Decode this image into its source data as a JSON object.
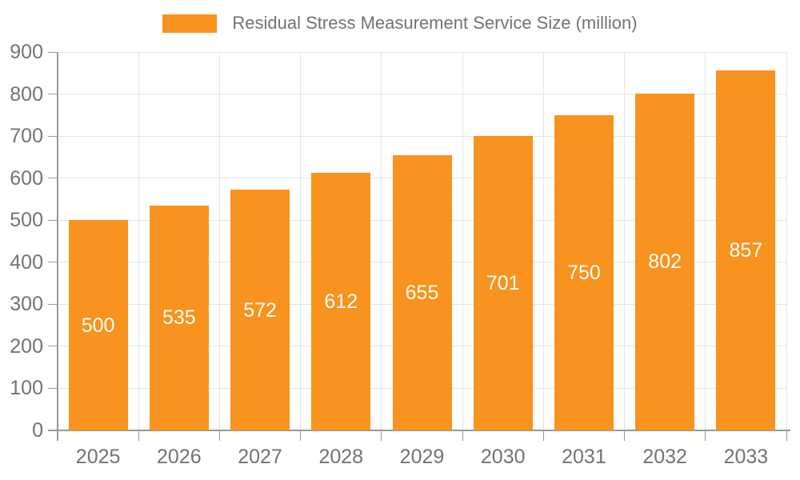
{
  "chart_data": {
    "type": "bar",
    "title": "Residual Stress Measurement Service Size (million)",
    "legend_position": "top",
    "categories": [
      "2025",
      "2026",
      "2027",
      "2028",
      "2029",
      "2030",
      "2031",
      "2032",
      "2033"
    ],
    "values": [
      500,
      535,
      572,
      612,
      655,
      701,
      750,
      802,
      857
    ],
    "value_labels": [
      "500",
      "535",
      "572",
      "612",
      "655",
      "701",
      "750",
      "802",
      "857"
    ],
    "xlabel": "",
    "ylabel": "",
    "ylim": [
      0,
      900
    ],
    "ytick_interval": 100,
    "ytick_labels": [
      "0",
      "100",
      "200",
      "300",
      "400",
      "500",
      "600",
      "700",
      "800",
      "900"
    ],
    "grid": true,
    "colors": {
      "bar": "#F7931E",
      "axis": "#999999",
      "tick_label": "#737373",
      "grid": "#E4E4E4",
      "value_label": "#FFFFFF",
      "background": "#FFFFFF"
    }
  }
}
